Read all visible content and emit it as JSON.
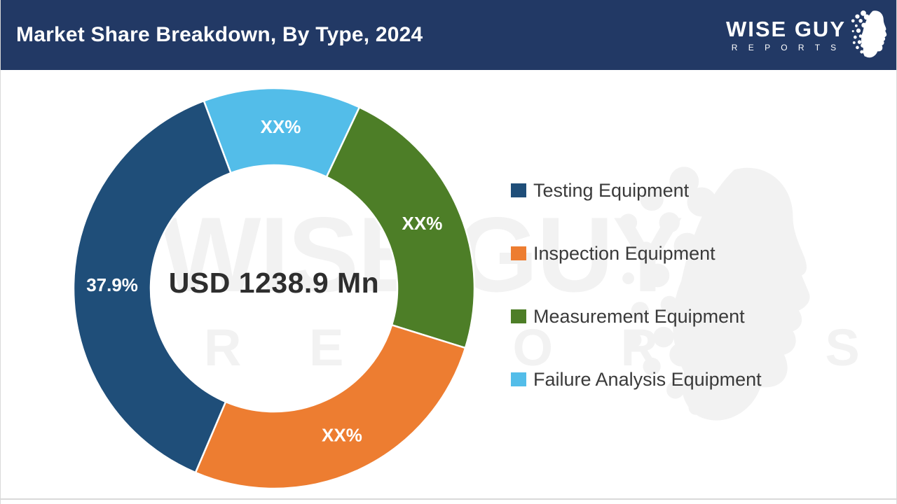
{
  "header": {
    "title": "Market Share Breakdown, By Type, 2024",
    "logo": {
      "line1": "WISE GUY",
      "line2": "R E P O R T S"
    }
  },
  "watermark": {
    "line1": "WISE GUY",
    "line2": "R E P O R T S"
  },
  "chart_data": {
    "type": "donut",
    "title": "Market Share Breakdown, By Type, 2024",
    "center_label": "USD 1238.9 Mn",
    "start_angle_deg": -20.5,
    "slices_clockwise_from_top": [
      {
        "name": "Failure Analysis Equipment",
        "value": 12.7,
        "label": "XX%",
        "color": "#53BDE9"
      },
      {
        "name": "Measurement Equipment",
        "value": 22.8,
        "label": "XX%",
        "color": "#4D7E27"
      },
      {
        "name": "Inspection Equipment",
        "value": 26.6,
        "label": "XX%",
        "color": "#ED7D31"
      },
      {
        "name": "Testing Equipment",
        "value": 37.9,
        "label": "37.9%",
        "color": "#1F4E79"
      }
    ]
  },
  "legend": {
    "items": [
      {
        "label": "Testing Equipment",
        "color": "#1F4E79"
      },
      {
        "label": "Inspection Equipment",
        "color": "#ED7D31"
      },
      {
        "label": "Measurement Equipment",
        "color": "#4D7E27"
      },
      {
        "label": "Failure Analysis Equipment",
        "color": "#53BDE9"
      }
    ]
  },
  "colors": {
    "header_bg": "#223965",
    "watermark": "#F2F2F2",
    "text_dark": "#2E2E2E",
    "border": "#D9D9D9",
    "slice_label_text": "#FFFFFF"
  }
}
